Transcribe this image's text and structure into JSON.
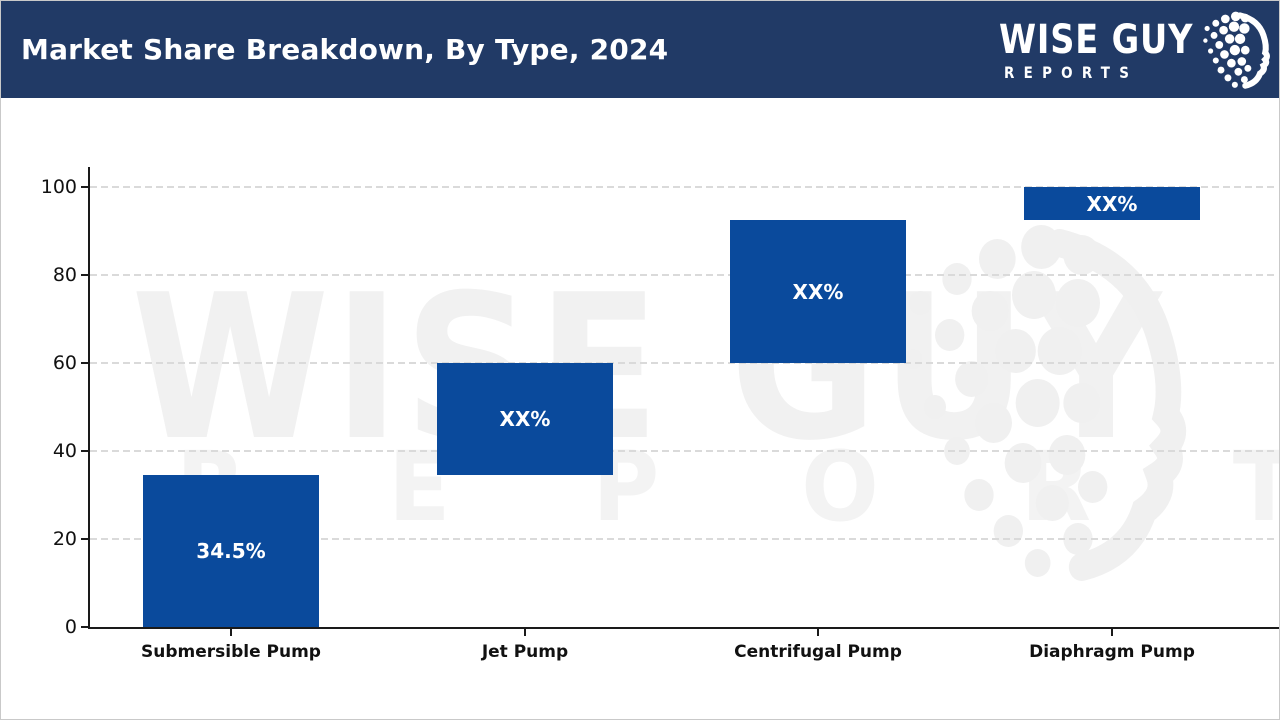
{
  "header": {
    "title": "Market Share Breakdown, By Type, 2024",
    "logo": {
      "line1": "WISE GUY",
      "line2": "REPORTS"
    }
  },
  "watermark": {
    "line1": "WISE GUY",
    "line2": "R E P O R T S"
  },
  "colors": {
    "header_bg": "#213a66",
    "bar": "#0a4a9c",
    "grid": "#dadada",
    "axis": "#1a1a1a",
    "watermark": "#f1f1f1"
  },
  "chart_data": {
    "type": "bar",
    "subtype": "waterfall-floating-bars",
    "title": "Market Share Breakdown, By Type, 2024",
    "categories": [
      "Submersible Pump",
      "Jet Pump",
      "Centrifugal Pump",
      "Diaphragm Pump"
    ],
    "segments": [
      {
        "category": "Submersible Pump",
        "start": 0,
        "end": 34.5,
        "label": "34.5%"
      },
      {
        "category": "Jet Pump",
        "start": 34.5,
        "end": 60,
        "label": "XX%"
      },
      {
        "category": "Centrifugal Pump",
        "start": 60,
        "end": 92.5,
        "label": "XX%"
      },
      {
        "category": "Diaphragm Pump",
        "start": 92.5,
        "end": 100,
        "label": "XX%"
      }
    ],
    "yticks": [
      0,
      20,
      40,
      60,
      80,
      100
    ],
    "ylim": [
      0,
      104
    ],
    "xlabel": "",
    "ylabel": "",
    "grid": "horizontal dashed",
    "legend": "none",
    "value_label_color": "#ffffff"
  }
}
